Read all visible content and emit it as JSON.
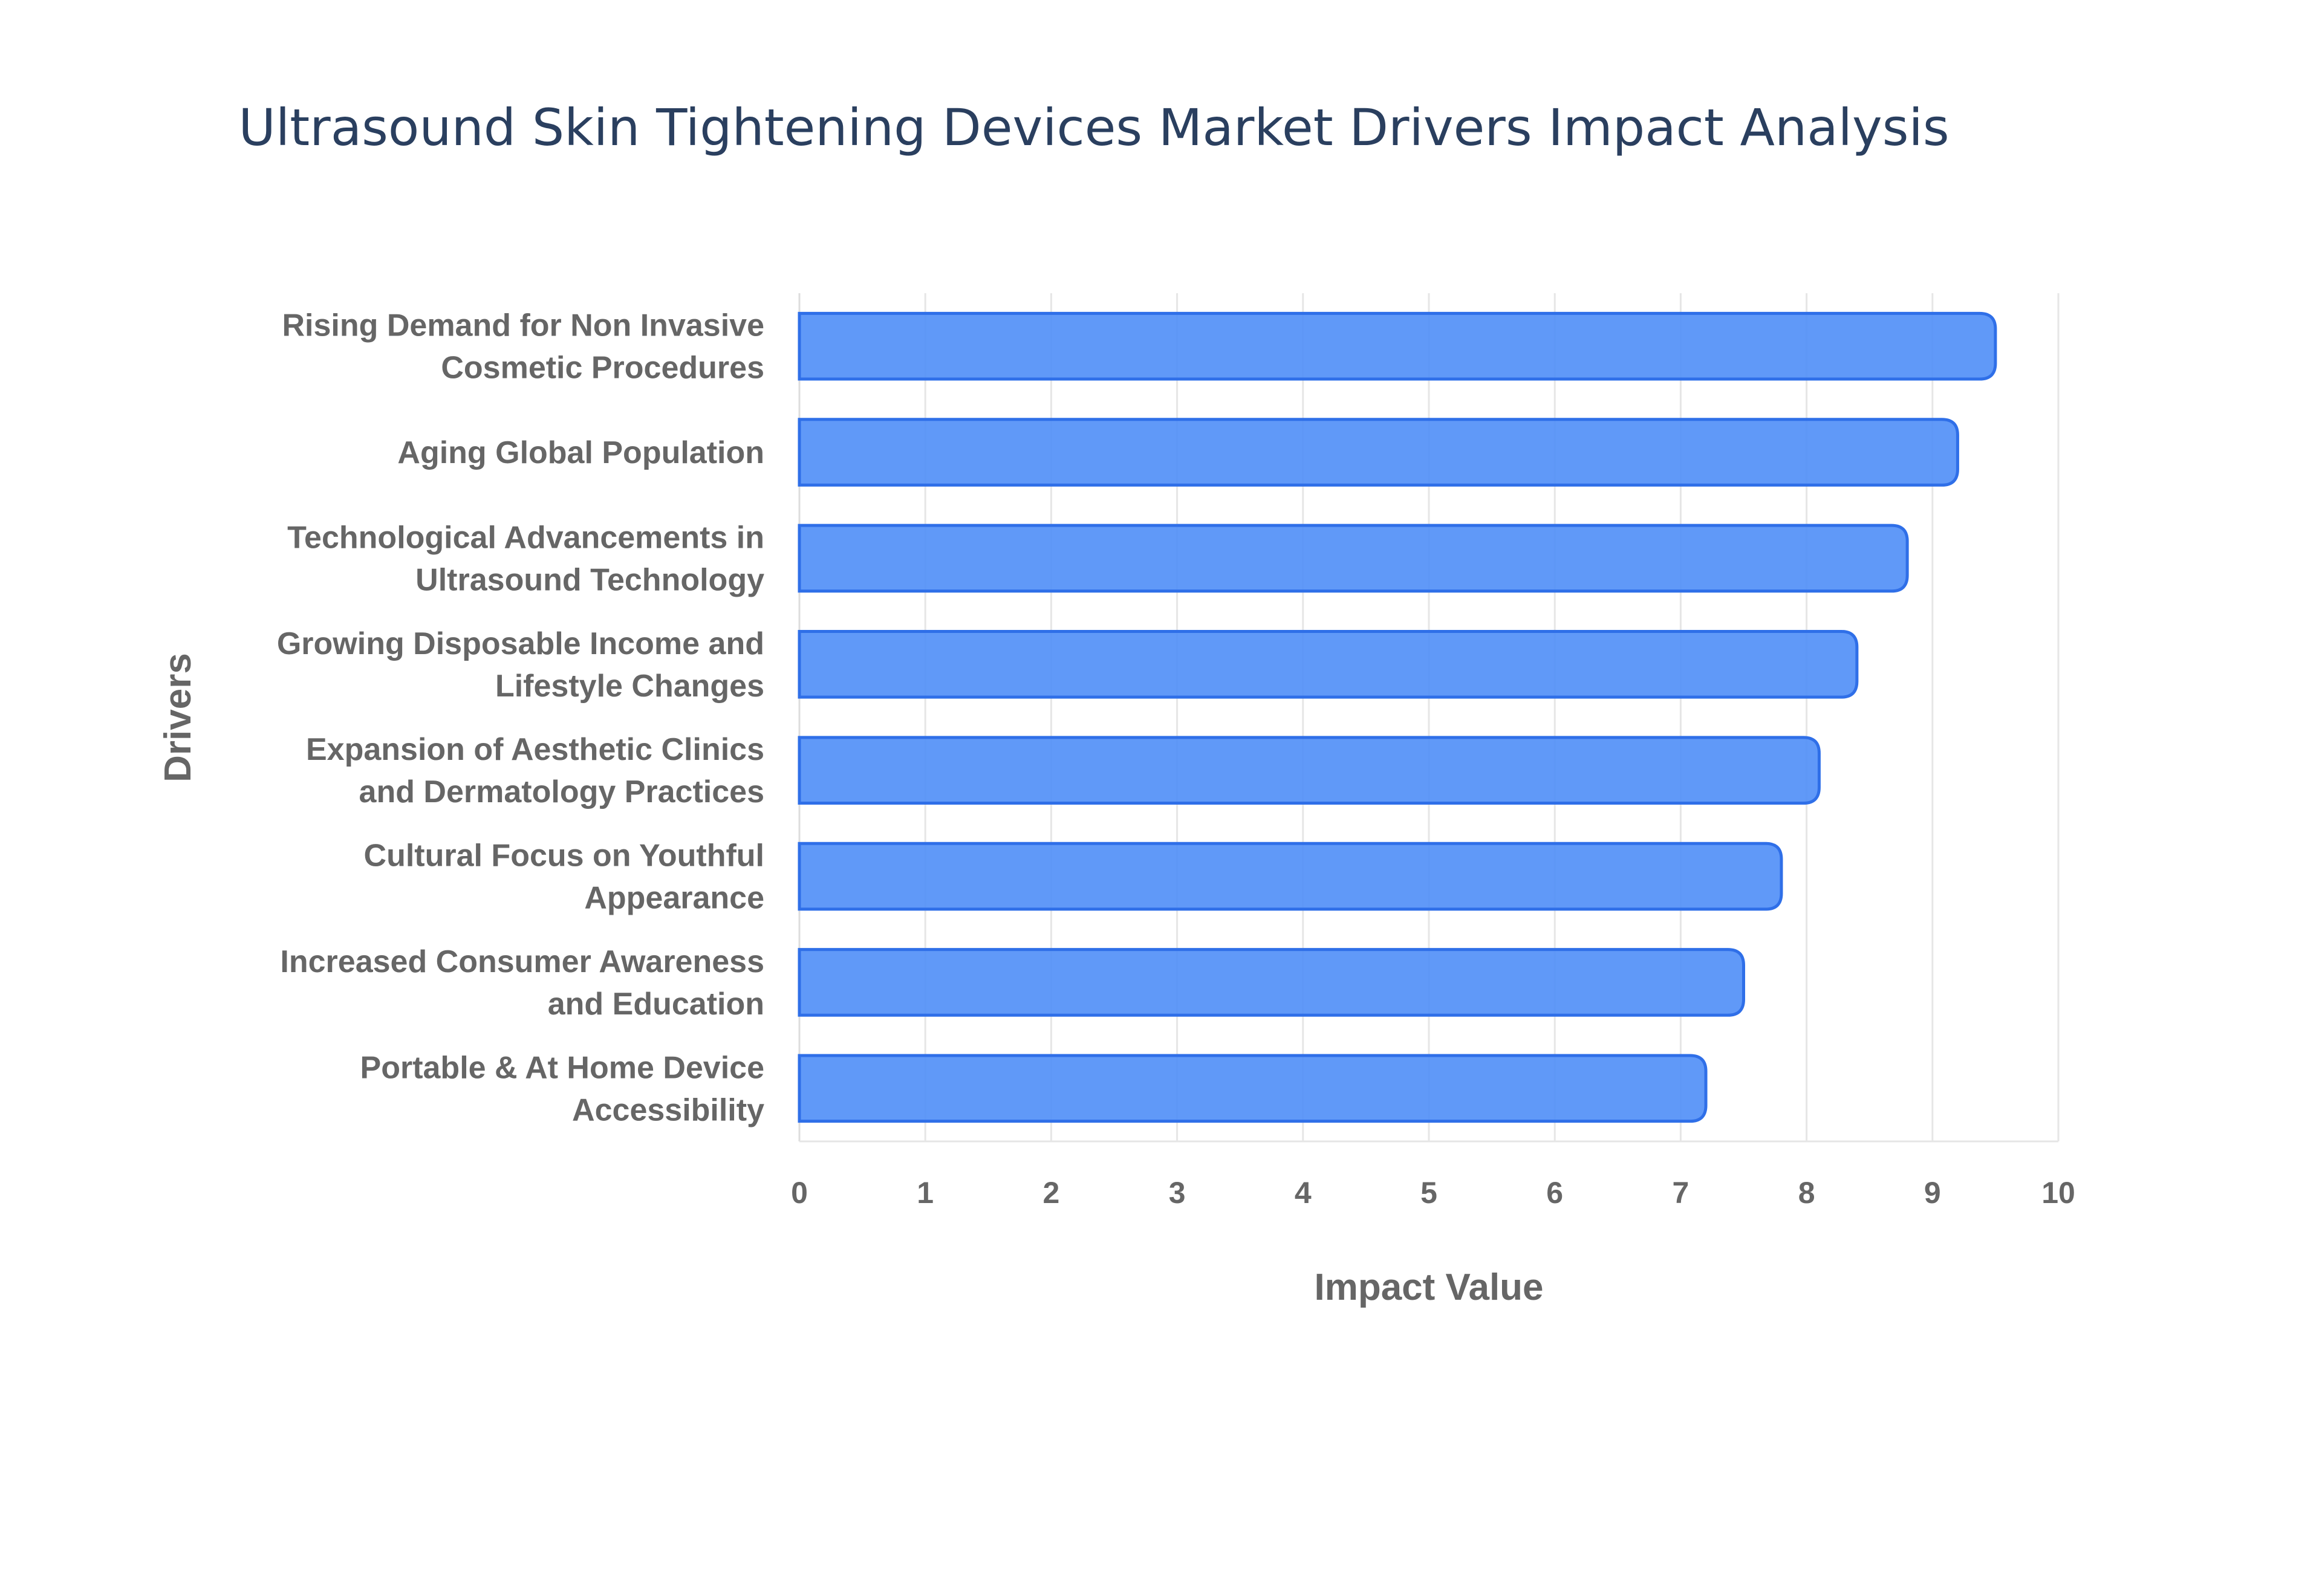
{
  "chart_data": {
    "type": "bar",
    "orientation": "horizontal",
    "title": "Ultrasound Skin Tightening Devices Market Drivers Impact Analysis",
    "xlabel": "Impact Value",
    "ylabel": "Drivers",
    "xlim": [
      0,
      10
    ],
    "xticks": [
      "0",
      "1",
      "2",
      "3",
      "4",
      "5",
      "6",
      "7",
      "8",
      "9",
      "10"
    ],
    "grid": true,
    "bar_color": "#4f8ef7",
    "bar_edge_color": "#2f6fe8",
    "categories": [
      [
        "Rising Demand for Non Invasive",
        "Cosmetic Procedures"
      ],
      [
        "Aging Global Population"
      ],
      [
        "Technological Advancements in",
        "Ultrasound Technology"
      ],
      [
        "Growing Disposable Income and",
        "Lifestyle Changes"
      ],
      [
        "Expansion of Aesthetic Clinics",
        "and Dermatology Practices"
      ],
      [
        "Cultural Focus on Youthful",
        "Appearance"
      ],
      [
        "Increased Consumer Awareness",
        "and Education"
      ],
      [
        "Portable & At Home Device",
        "Accessibility"
      ]
    ],
    "values": [
      9.5,
      9.2,
      8.8,
      8.4,
      8.1,
      7.8,
      7.5,
      7.2
    ]
  }
}
